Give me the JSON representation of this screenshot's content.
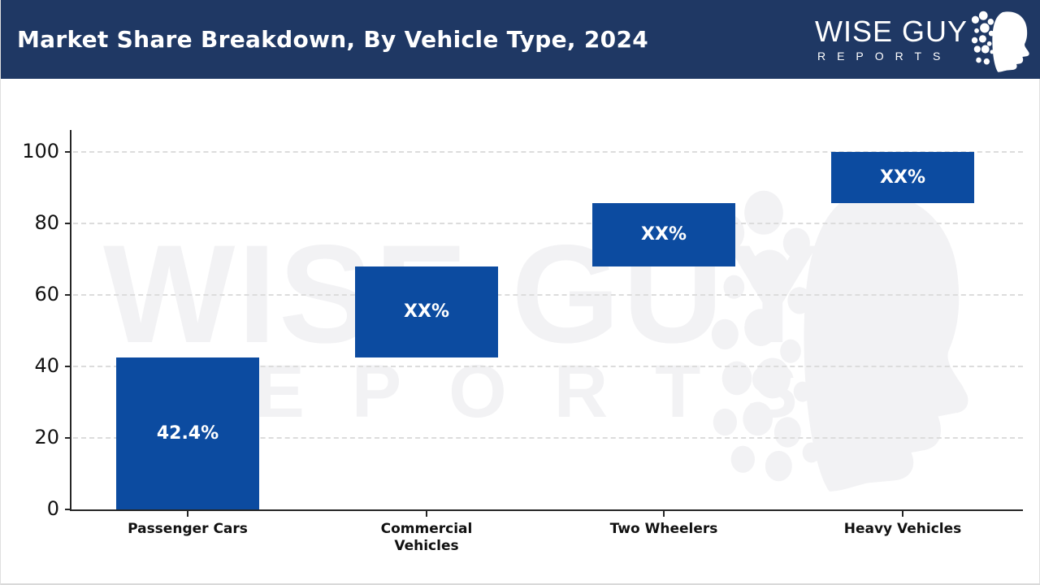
{
  "header": {
    "title": "Market Share Breakdown, By Vehicle Type, 2024",
    "logo_line1": "WISE GUY",
    "logo_line2": "REPORTS"
  },
  "watermark": {
    "line1": "WISE GUY",
    "line2": "REPORTS"
  },
  "colors": {
    "header_navy": "#1f3864",
    "bar_blue": "#0c4ba0",
    "grid": "#dcdcdc",
    "axis": "#262626",
    "watermark": "#f2f2f4",
    "bar_label": "#ffffff"
  },
  "chart_data": {
    "type": "bar",
    "subtype": "floating-waterfall",
    "title": "Market Share Breakdown, By Vehicle Type, 2024",
    "categories": [
      "Passenger Cars",
      "Commercial\nVehicles",
      "Two Wheelers",
      "Heavy Vehicles"
    ],
    "segments": [
      {
        "category": "Passenger Cars",
        "start": 0,
        "end": 42.4,
        "label": "42.4%"
      },
      {
        "category": "Commercial Vehicles",
        "start": 42.4,
        "end": 68,
        "label": "XX%"
      },
      {
        "category": "Two Wheelers",
        "start": 68,
        "end": 85.5,
        "label": "XX%"
      },
      {
        "category": "Heavy Vehicles",
        "start": 85.5,
        "end": 100,
        "label": "XX%"
      }
    ],
    "ylim": [
      0,
      100
    ],
    "yticks": [
      0,
      20,
      40,
      60,
      80,
      100
    ],
    "xlabel": "",
    "ylabel": "",
    "grid": "horizontal-dashed",
    "legend": "none",
    "bar_color": "#0c4ba0",
    "bar_label_color": "#ffffff"
  }
}
